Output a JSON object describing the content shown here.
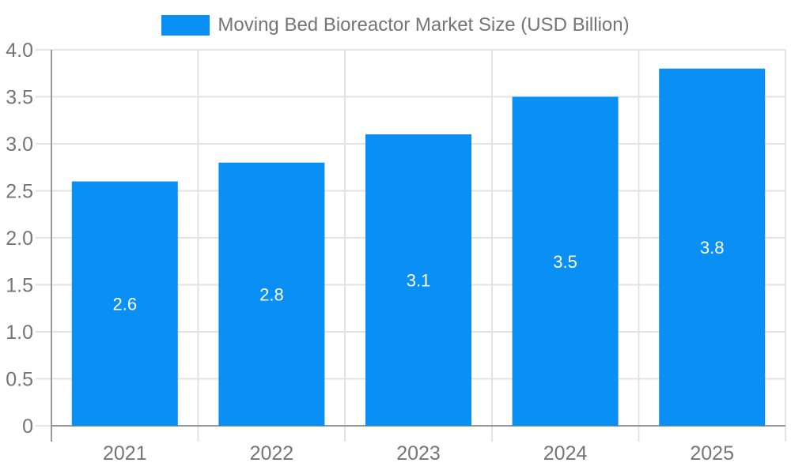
{
  "legend": {
    "label": "Moving Bed Bioreactor Market Size (USD Billion)"
  },
  "colors": {
    "bar": "#0a90f5",
    "grid": "#e3e3e3",
    "axis": "#9a9a9a",
    "tick_text": "#757575",
    "bar_label": "#ffffff"
  },
  "chart_data": {
    "type": "bar",
    "title": "Moving Bed Bioreactor Market Size (USD Billion)",
    "categories": [
      "2021",
      "2022",
      "2023",
      "2024",
      "2025"
    ],
    "values": [
      2.6,
      2.8,
      3.1,
      3.5,
      3.8
    ],
    "bar_labels": [
      "2.6",
      "2.8",
      "3.1",
      "3.5",
      "3.8"
    ],
    "xlabel": "",
    "ylabel": "",
    "ylim": [
      0,
      4.0
    ],
    "ytick_step": 0.5,
    "ytick_labels": [
      "0",
      "0.5",
      "1.0",
      "1.5",
      "2.0",
      "2.5",
      "3.0",
      "3.5",
      "4.0"
    ],
    "grid": true,
    "legend_position": "top",
    "bar_label_position": "center-inside"
  }
}
